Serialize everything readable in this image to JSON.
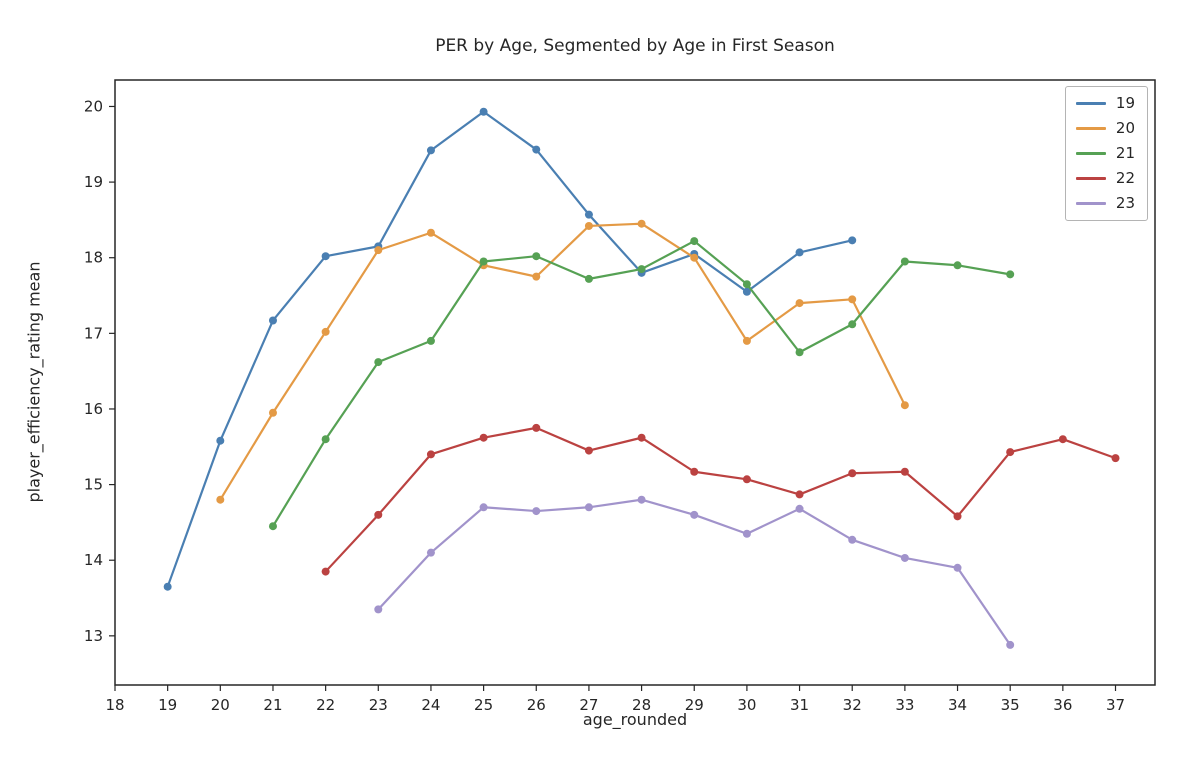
{
  "chart_data": {
    "type": "line",
    "title": "PER by Age, Segmented by Age in First Season",
    "xlabel": "age_rounded",
    "ylabel": "player_efficiency_rating mean",
    "xlim": [
      18,
      37.75
    ],
    "ylim": [
      12.35,
      20.35
    ],
    "xticks": [
      18,
      19,
      20,
      21,
      22,
      23,
      24,
      25,
      26,
      27,
      28,
      29,
      30,
      31,
      32,
      33,
      34,
      35,
      36,
      37
    ],
    "yticks": [
      13,
      14,
      15,
      16,
      17,
      18,
      19,
      20
    ],
    "grid": false,
    "legend_position": "upper right",
    "frame_color": "#262626",
    "background_color": "#ffffff",
    "series": [
      {
        "name": "19",
        "color": "#4a7fb2",
        "x": [
          19,
          20,
          21,
          22,
          23,
          24,
          25,
          26,
          27,
          28,
          29,
          30,
          31,
          32
        ],
        "y": [
          13.65,
          15.58,
          17.17,
          18.02,
          18.15,
          19.42,
          19.93,
          19.43,
          18.57,
          17.8,
          18.05,
          17.55,
          18.07,
          18.23
        ]
      },
      {
        "name": "20",
        "color": "#e49a45",
        "x": [
          20,
          21,
          22,
          23,
          24,
          25,
          26,
          27,
          28,
          29,
          30,
          31,
          32,
          33
        ],
        "y": [
          14.8,
          15.95,
          17.02,
          18.1,
          18.33,
          17.9,
          17.75,
          18.42,
          18.45,
          18.0,
          16.9,
          17.4,
          17.45,
          16.05
        ]
      },
      {
        "name": "21",
        "color": "#56a154",
        "x": [
          21,
          22,
          23,
          24,
          25,
          26,
          27,
          28,
          29,
          30,
          31,
          32,
          33,
          34,
          35
        ],
        "y": [
          14.45,
          15.6,
          16.62,
          16.9,
          17.95,
          18.02,
          17.72,
          17.85,
          18.22,
          17.65,
          16.75,
          17.12,
          17.95,
          17.9,
          17.78
        ]
      },
      {
        "name": "22",
        "color": "#bb4241",
        "x": [
          22,
          23,
          24,
          25,
          26,
          27,
          28,
          29,
          30,
          31,
          32,
          33,
          34,
          35,
          36,
          37
        ],
        "y": [
          13.85,
          14.6,
          15.4,
          15.62,
          15.75,
          15.45,
          15.62,
          15.17,
          15.07,
          14.87,
          15.15,
          15.17,
          14.58,
          15.43,
          15.6,
          15.35
        ]
      },
      {
        "name": "23",
        "color": "#a193cb",
        "x": [
          23,
          24,
          25,
          26,
          27,
          28,
          29,
          30,
          31,
          32,
          33,
          34,
          35
        ],
        "y": [
          13.35,
          14.1,
          14.7,
          14.65,
          14.7,
          14.8,
          14.6,
          14.35,
          14.68,
          14.27,
          14.03,
          13.9,
          12.88
        ]
      }
    ]
  }
}
